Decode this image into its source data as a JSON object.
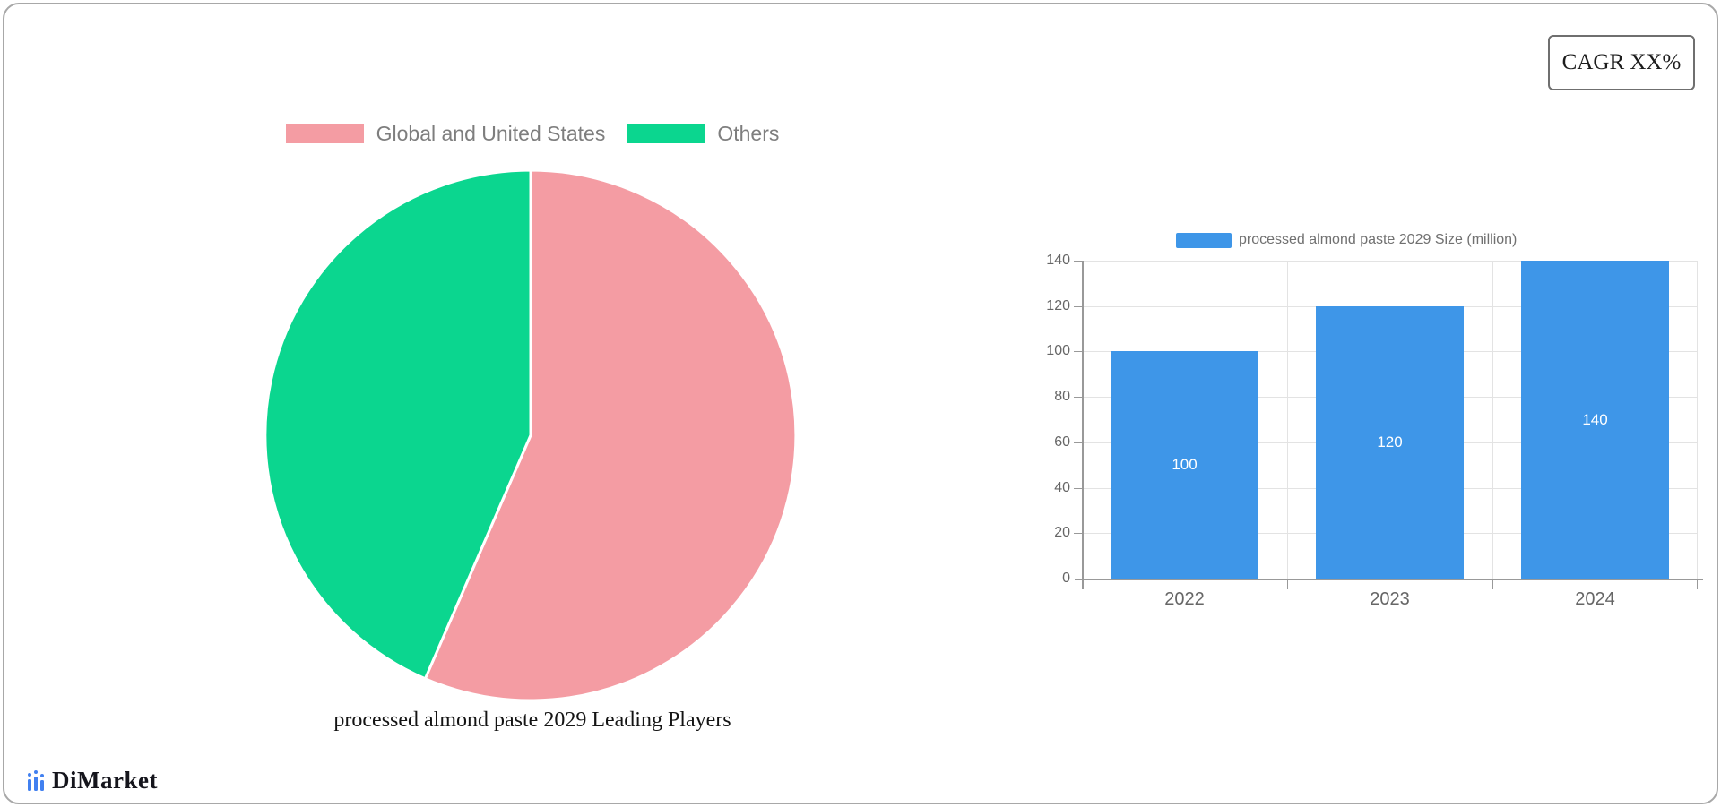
{
  "cagr": {
    "label": "CAGR XX%"
  },
  "footer": {
    "brand": "DiMarket",
    "logo_icon": "bar-chart-logo-icon",
    "logo_color": "#4180f0"
  },
  "colors": {
    "card_border": "#a8a8a8",
    "grid_line": "#e3e3e3",
    "axis_line": "#999999",
    "axis_label": "#666666",
    "legend_text": "#7e7e7e"
  },
  "chart_data": [
    {
      "type": "pie",
      "title": "processed almond paste 2029 Leading Players",
      "slices": [
        {
          "label": "Global and United States",
          "value": 56.5,
          "color": "#f49ca3"
        },
        {
          "label": "Others",
          "value": 43.5,
          "color": "#0bd68f"
        }
      ],
      "unit": "percent",
      "start_angle": "12-oclock",
      "direction": "clockwise",
      "legend_position": "top",
      "separator_color": "#ffffff"
    },
    {
      "type": "bar",
      "legend": "processed almond paste 2029 Size (million)",
      "categories": [
        "2022",
        "2023",
        "2024"
      ],
      "values": [
        100,
        120,
        140
      ],
      "bar_color": "#3e96e8",
      "value_label_color": "#ffffff",
      "ylim": [
        0,
        140
      ],
      "yticks": [
        0,
        20,
        40,
        60,
        80,
        100,
        120,
        140
      ],
      "grid": true,
      "legend_position": "top"
    }
  ]
}
